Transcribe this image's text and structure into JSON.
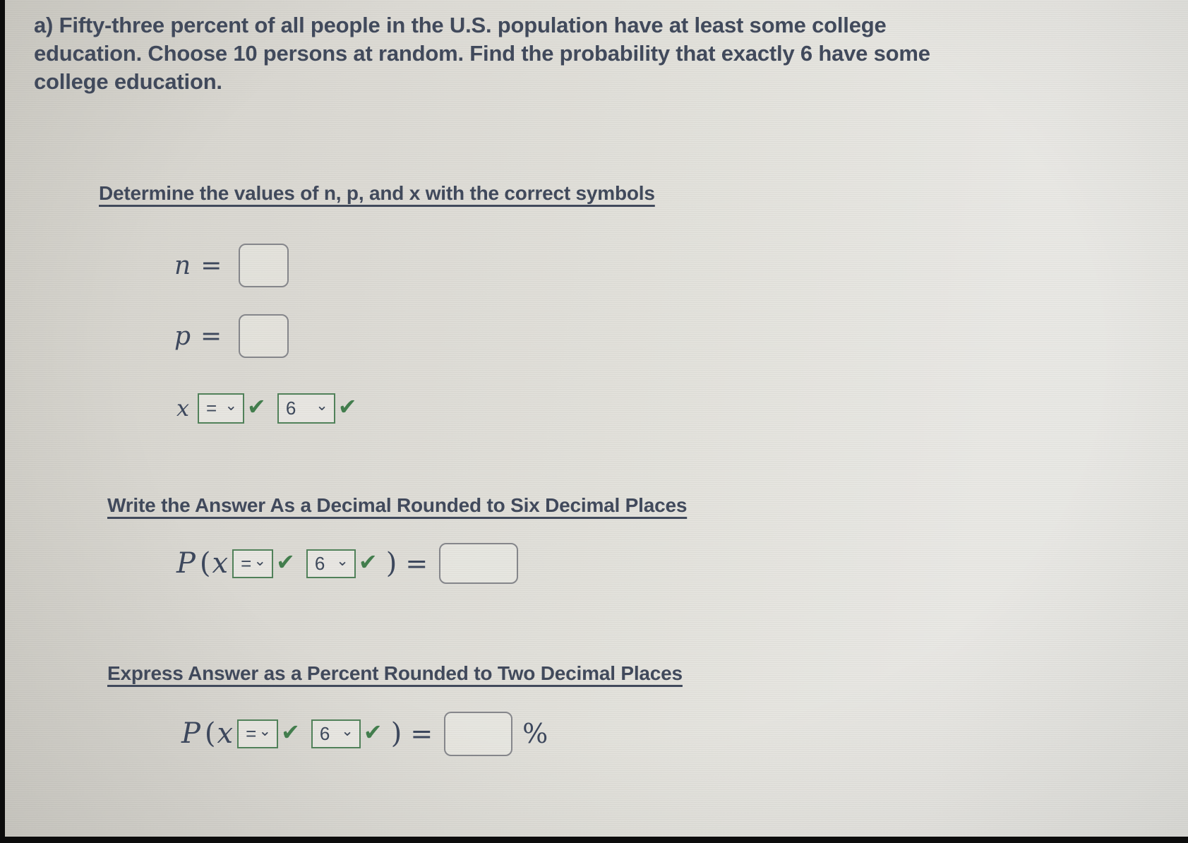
{
  "question": {
    "lines": [
      "a) Fifty-three percent of all people in the U.S. population have at least some college",
      "education. Choose 10 persons at random. Find the probability that exactly 6 have some",
      "college education."
    ]
  },
  "icons": {
    "check": "✔",
    "chevron_down": "⌄"
  },
  "colors": {
    "text": "#3d4659",
    "green_border": "#4e8057",
    "check_green": "#3f7c4a",
    "input_border": "#84858a"
  },
  "symbols_section": {
    "heading": "Determine the values of n, p, and x with the correct symbols",
    "n_label": "n",
    "n_equals": "=",
    "n_value": "",
    "p_label": "p",
    "p_equals": "=",
    "p_value": "",
    "x_label": "x",
    "x_operator": "=",
    "x_value": "6"
  },
  "decimal_section": {
    "heading": "Write the Answer As a Decimal Rounded to Six Decimal Places",
    "func": "P",
    "open": "(",
    "var": "x",
    "operator": "=",
    "value": "6",
    "close": ")",
    "equals": "=",
    "answer": ""
  },
  "percent_section": {
    "heading": "Express Answer as a Percent Rounded to Two Decimal Places",
    "func": "P",
    "open": "(",
    "var": "x",
    "operator": "=",
    "value": "6",
    "close": ")",
    "equals": "=",
    "answer": "",
    "suffix": "%"
  }
}
